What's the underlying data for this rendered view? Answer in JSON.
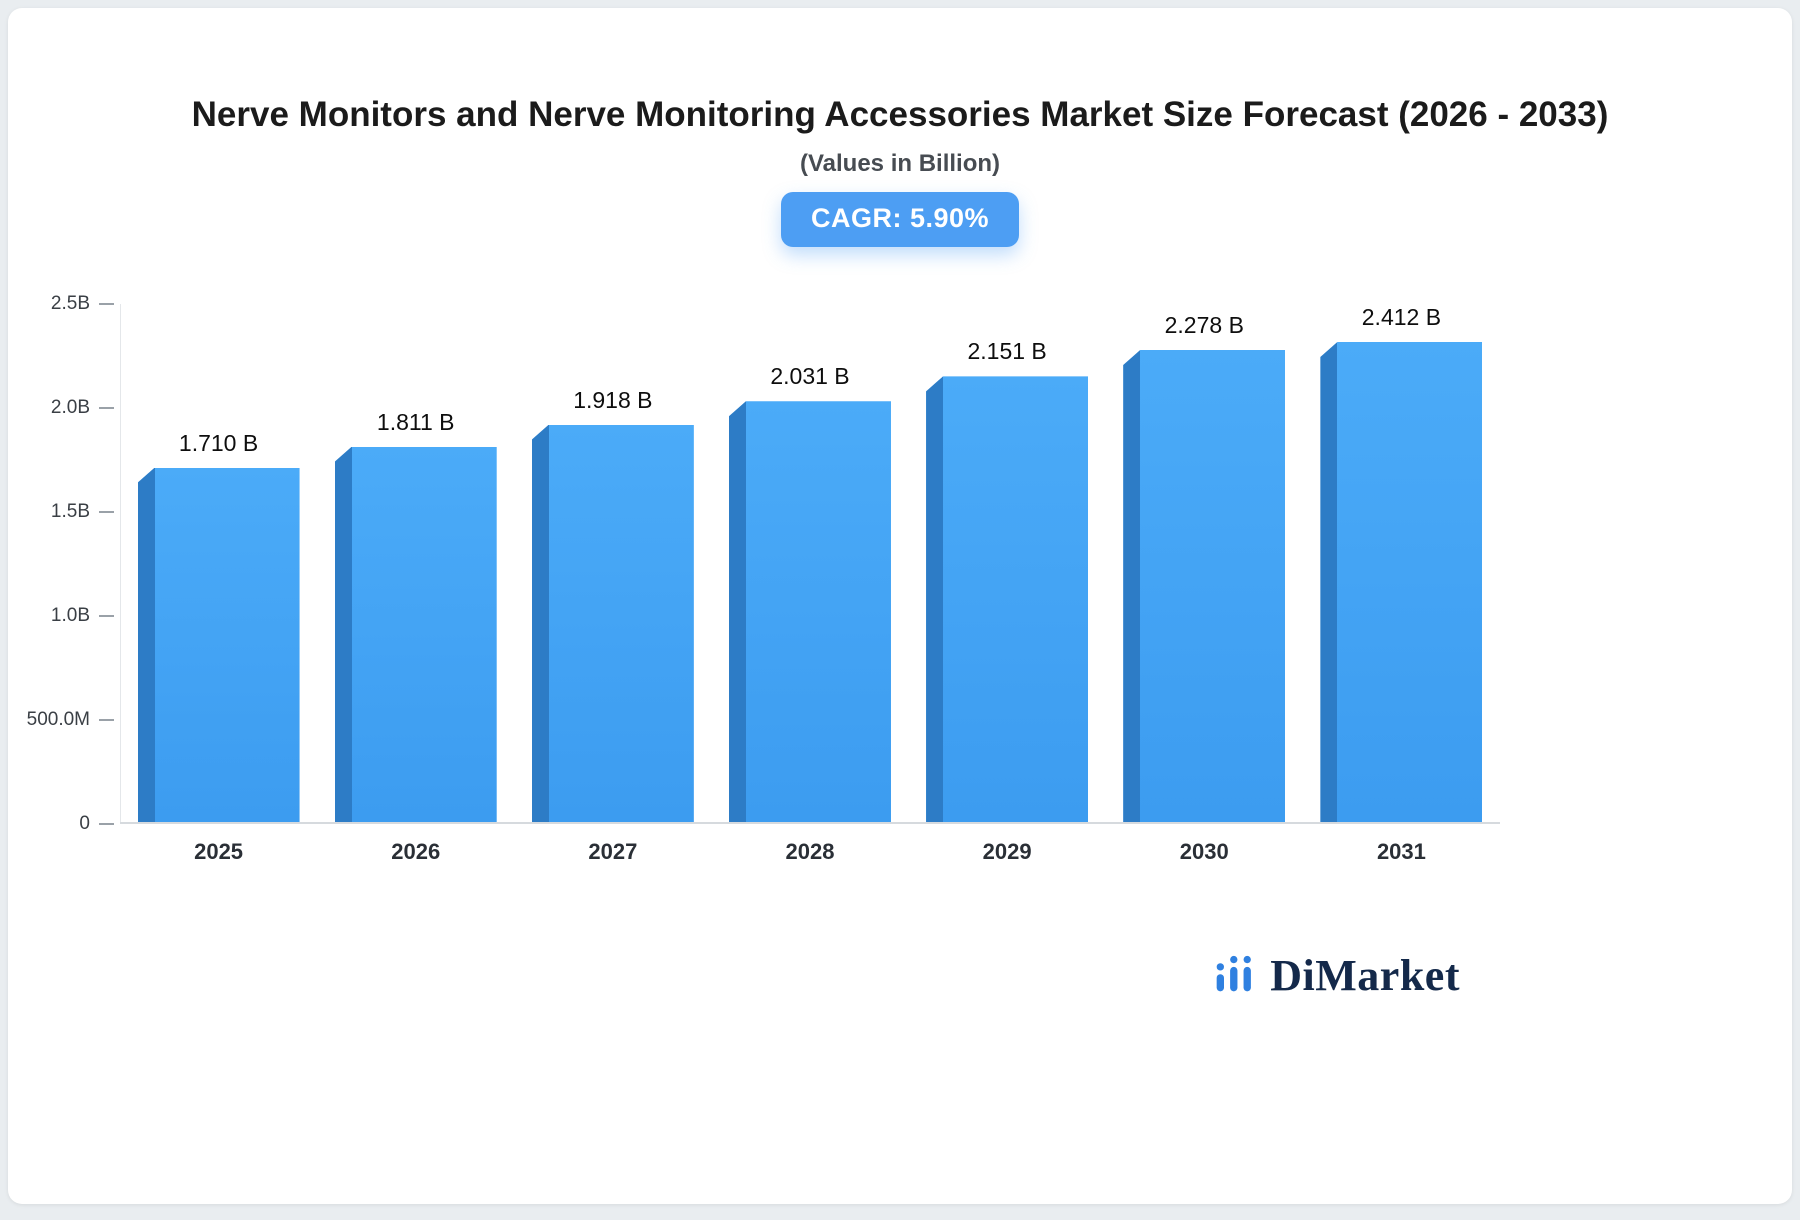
{
  "page": {
    "title": "Nerve Monitors and Nerve Monitoring Accessories Market Size Forecast (2026 - 2033)",
    "subtitle": "(Values in Billion)",
    "cagr_badge": "CAGR: 5.90%",
    "brand": "DiMarket"
  },
  "chart_data": {
    "type": "bar",
    "title": "Nerve Monitors and Nerve Monitoring Accessories Market Size Forecast (2026 - 2033)",
    "subtitle": "(Values in Billion)",
    "cagr": "5.90%",
    "categories": [
      "2025",
      "2026",
      "2027",
      "2028",
      "2029",
      "2030",
      "2031"
    ],
    "values": [
      1.71,
      1.811,
      1.918,
      2.031,
      2.151,
      2.278,
      2.412
    ],
    "value_labels": [
      "1.710 B",
      "1.811 B",
      "1.918 B",
      "2.031 B",
      "2.151 B",
      "2.278 B",
      "2.412 B"
    ],
    "unit": "B",
    "xlabel": "",
    "ylabel": "",
    "ylim": [
      0,
      2.5
    ],
    "y_ticks": [
      {
        "value": 2.5,
        "label": "2.5B"
      },
      {
        "value": 2.0,
        "label": "2.0B"
      },
      {
        "value": 1.5,
        "label": "1.5B"
      },
      {
        "value": 1.0,
        "label": "1.0B"
      },
      {
        "value": 0.5,
        "label": "500.0M"
      },
      {
        "value": 0,
        "label": "0"
      }
    ],
    "grid": false,
    "legend": false,
    "bar_color": "#3FA2F4",
    "bar_side_color": "#2D7CC6",
    "badge_color": "#4D9EF3"
  }
}
